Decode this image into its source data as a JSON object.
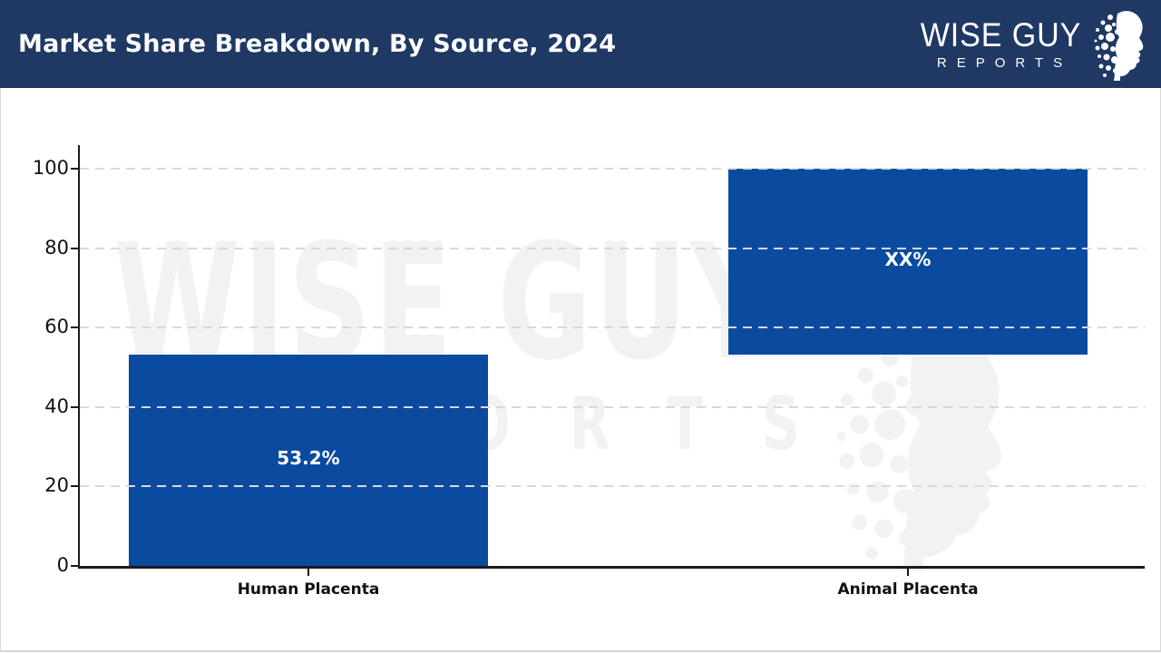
{
  "header": {
    "title": "Market Share Breakdown, By Source, 2024",
    "logo": {
      "line1": "WISE GUY",
      "line2": "REPORTS"
    }
  },
  "watermark": {
    "line1": "WISE GUY",
    "line2": "REPORTS"
  },
  "colors": {
    "header_bg": "#1f3864",
    "header_text": "#ffffff",
    "bar": "#0a4ba0",
    "bar_label": "#ffffff",
    "grid": "#d9d9d9",
    "axis": "#1a1a1a",
    "tick_text": "#111111",
    "watermark": "#f2f2f2",
    "panel_bg": "#ffffff"
  },
  "chart_data": {
    "type": "bar",
    "title": "Market Share Breakdown, By Source, 2024",
    "categories": [
      "Human Placenta",
      "Animal Placenta"
    ],
    "bars": [
      {
        "category": "Human Placenta",
        "label": "53.2%",
        "start": 0,
        "end": 53.2,
        "value": 53.2
      },
      {
        "category": "Animal Placenta",
        "label": "XX%",
        "start": 53.2,
        "end": 100,
        "value": 46.8
      }
    ],
    "ylabel": "",
    "xlabel": "",
    "yticks": [
      0,
      20,
      40,
      60,
      80,
      100
    ],
    "ylim": [
      0,
      105
    ],
    "grid": "horizontal-dashed",
    "legend": "none",
    "bar_color": "#0a4ba0",
    "label_color": "#ffffff",
    "notes": "floating stacked bars: Animal Placenta bar spans 53.2 to 100 (value hidden as XX%)"
  }
}
